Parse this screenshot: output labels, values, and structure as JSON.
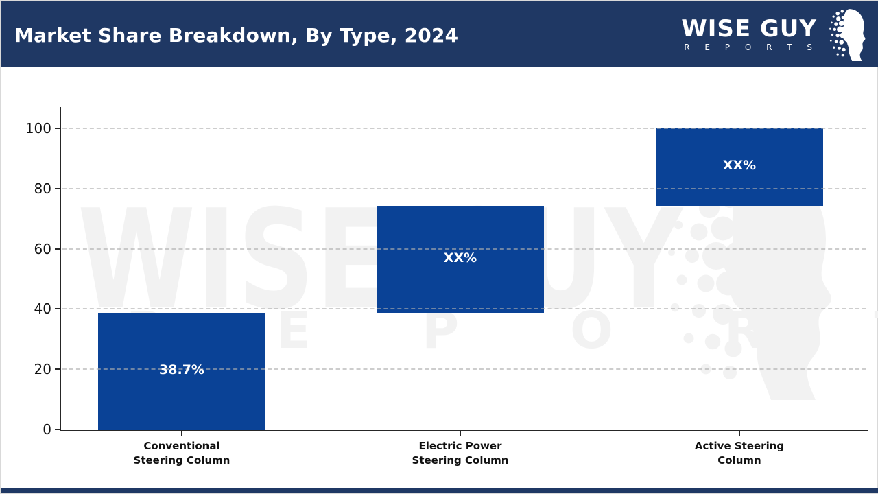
{
  "header": {
    "title": "Market Share Breakdown, By Type, 2024",
    "bg_color": "#1F3864",
    "logo": {
      "line1": "WISE GUY",
      "line2": "R E P O R T S"
    }
  },
  "watermark": {
    "line1": "WISE GUY",
    "line2": "R E P O R T S"
  },
  "chart_data": {
    "type": "bar",
    "subtype": "stacked-waterfall-percentage",
    "title": "Market Share Breakdown, By Type, 2024",
    "categories": [
      "Conventional Steering Column",
      "Electric Power Steering Column",
      "Active Steering Column"
    ],
    "category_lines": [
      [
        "Conventional",
        "Steering Column"
      ],
      [
        "Electric Power",
        "Steering Column"
      ],
      [
        "Active Steering",
        "Column"
      ]
    ],
    "segments": [
      {
        "category": "Conventional Steering Column",
        "start": 0,
        "end": 38.7,
        "label": "38.7%"
      },
      {
        "category": "Electric Power Steering Column",
        "start": 38.7,
        "end": 74.3,
        "label": "XX%"
      },
      {
        "category": "Active Steering Column",
        "start": 74.3,
        "end": 100,
        "label": "XX%"
      }
    ],
    "bar_color": "#0A4296",
    "bar_label_color": "#ffffff",
    "xlabel": "",
    "ylabel": "",
    "ylim": [
      0,
      100
    ],
    "yticks": [
      0,
      20,
      40,
      60,
      80,
      100
    ],
    "grid": "horizontal dashed, drawn over bars",
    "legend": null
  }
}
